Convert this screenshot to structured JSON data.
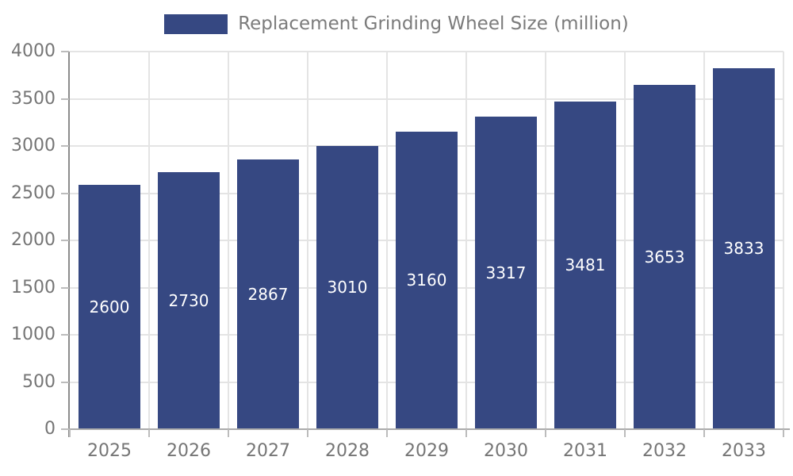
{
  "chart_data": {
    "type": "bar",
    "title": "",
    "legend": "Replacement Grinding Wheel Size (million)",
    "categories": [
      "2025",
      "2026",
      "2027",
      "2028",
      "2029",
      "2030",
      "2031",
      "2032",
      "2033"
    ],
    "values": [
      2600,
      2730,
      2867,
      3010,
      3160,
      3317,
      3481,
      3653,
      3833
    ],
    "ylim": [
      0,
      4000
    ],
    "yticks": [
      0,
      500,
      1000,
      1500,
      2000,
      2500,
      3000,
      3500,
      4000
    ],
    "legend_position": "top-center",
    "grid": true,
    "colors": {
      "bar": "#364882",
      "bar_value_label": "#ffffff",
      "axis_text": "#757575",
      "legend_text": "#7b7b7b",
      "gridline": "#e4e4e4"
    }
  }
}
